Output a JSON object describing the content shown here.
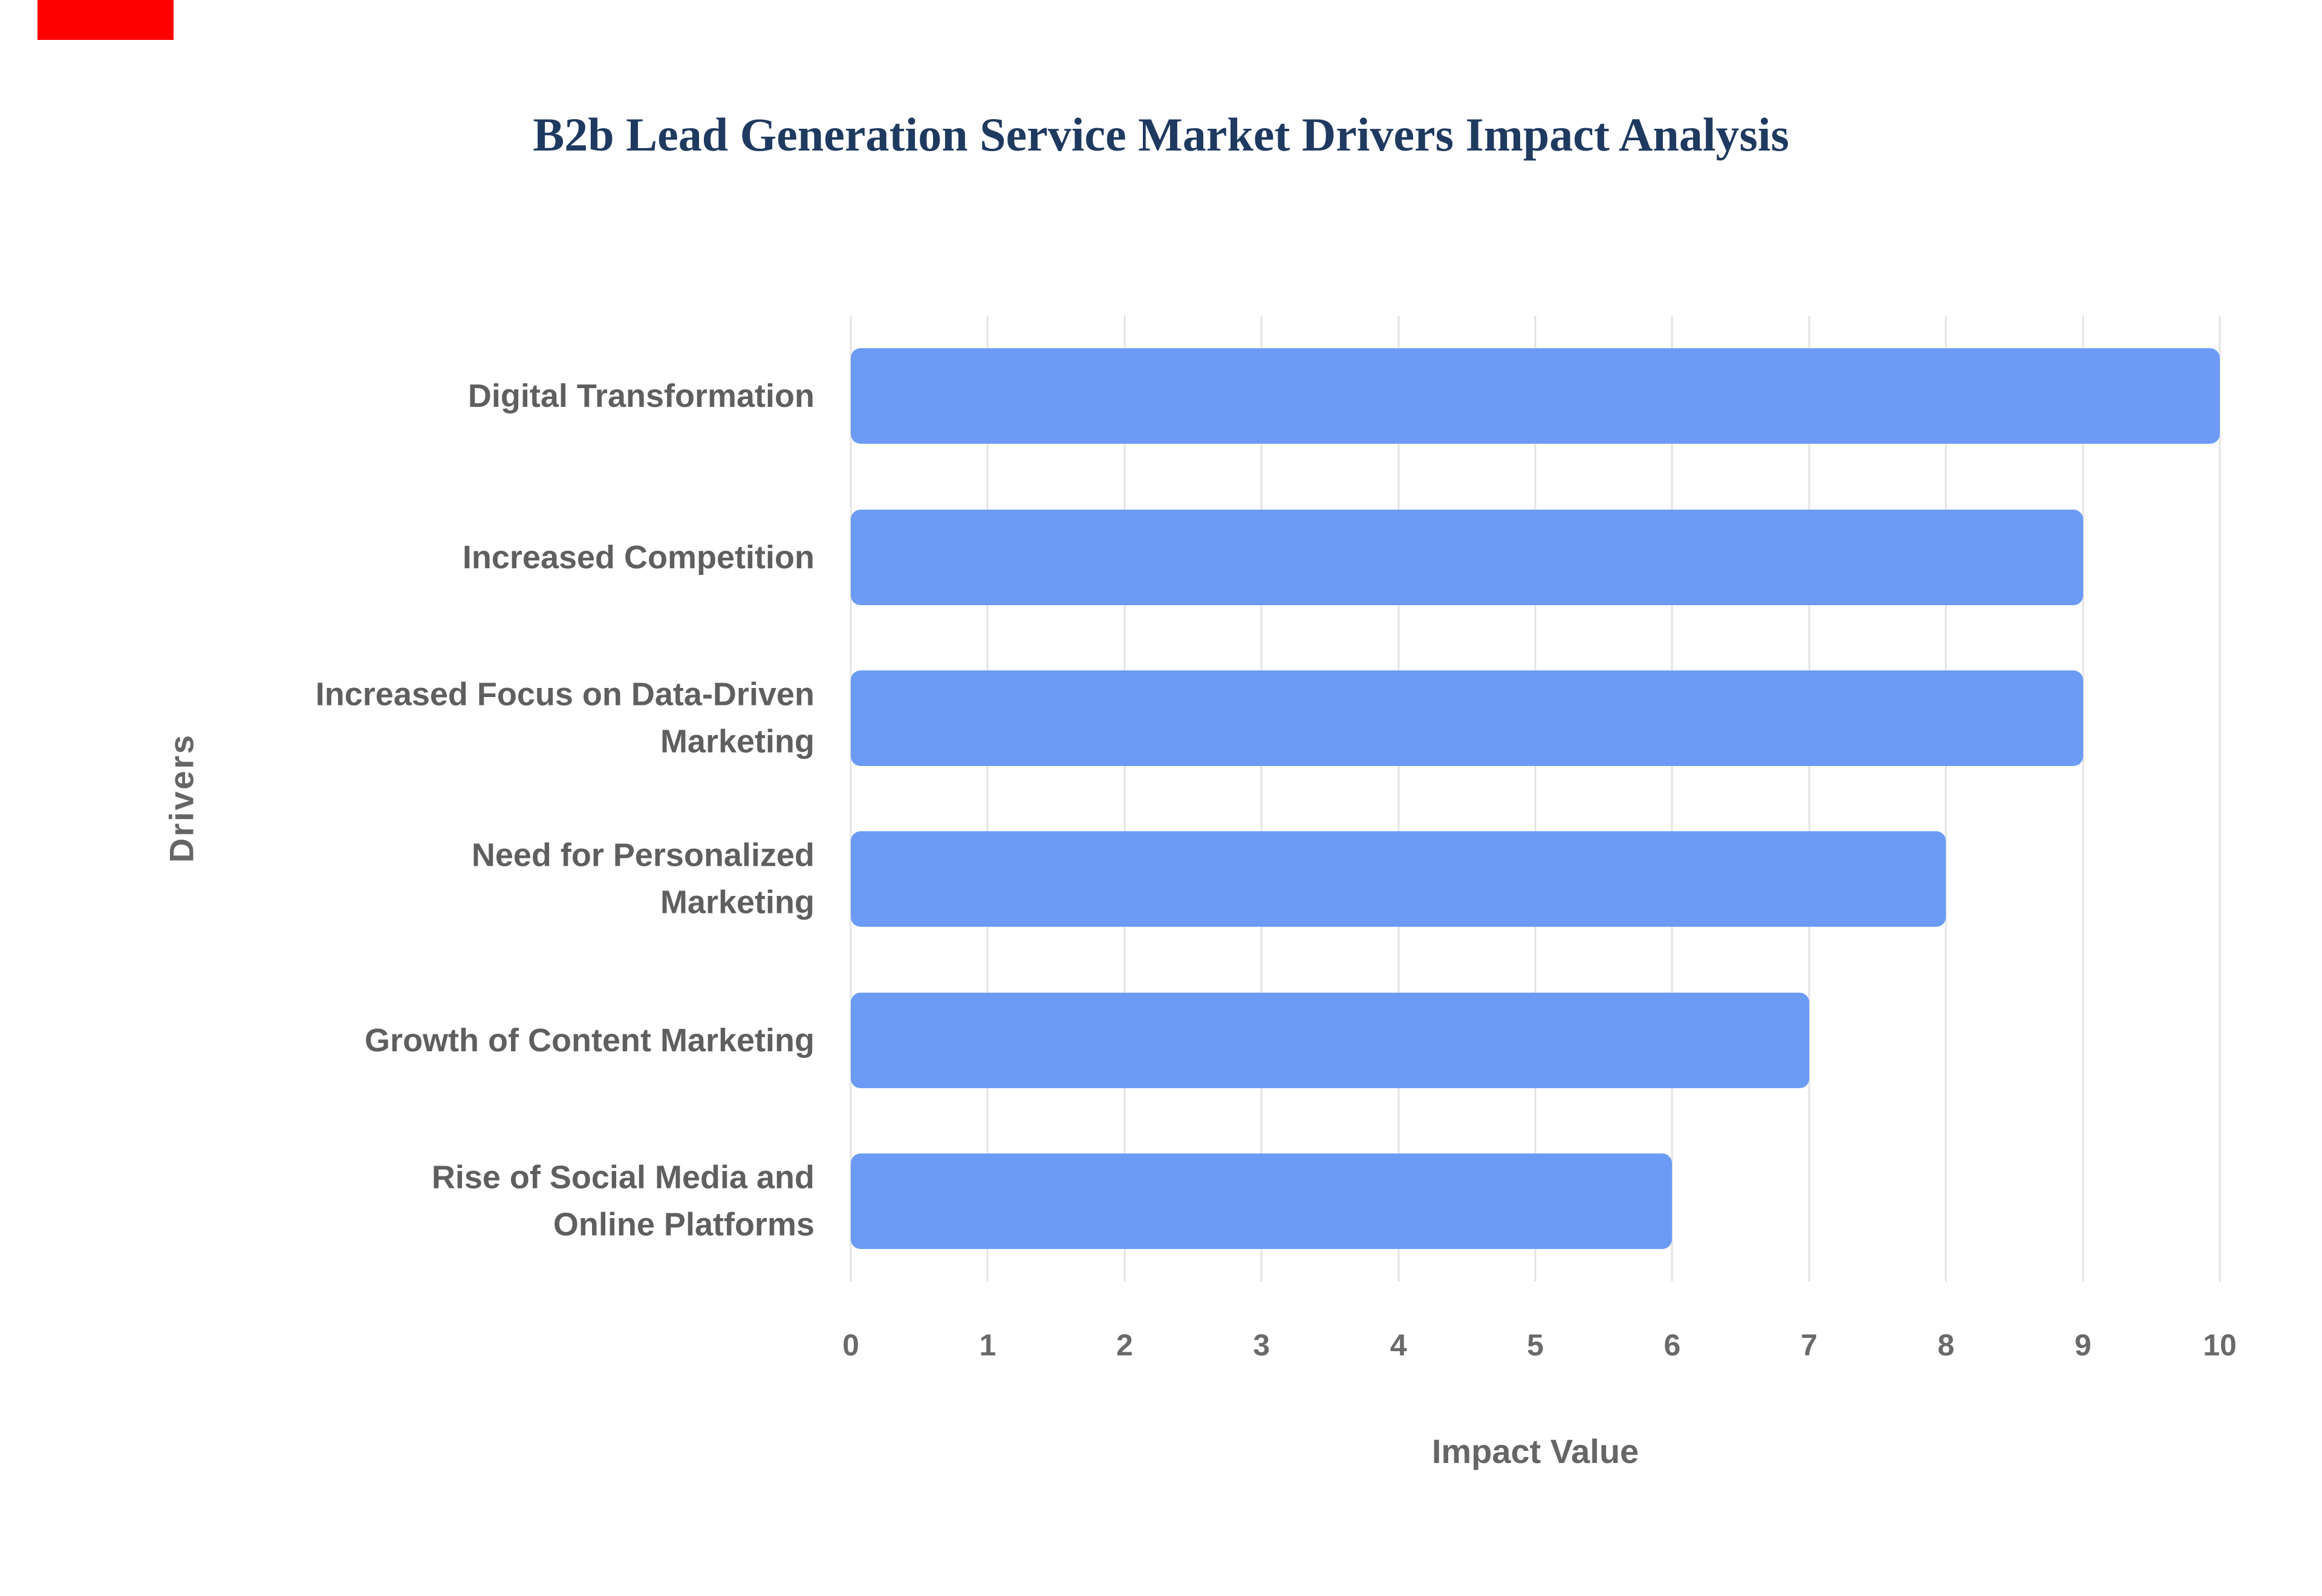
{
  "decorations": {
    "red_block_color": "#fe0000"
  },
  "chart_data": {
    "type": "bar",
    "orientation": "horizontal",
    "title": "B2b Lead Generation Service Market Drivers Impact Analysis",
    "categories": [
      "Digital Transformation",
      "Increased Competition",
      "Increased Focus on Data-Driven\nMarketing",
      "Need for Personalized\nMarketing",
      "Growth of Content Marketing",
      "Rise of Social Media and\nOnline Platforms"
    ],
    "values": [
      10,
      9,
      9,
      8,
      7,
      6
    ],
    "xlabel": "Impact Value",
    "ylabel": "Drivers",
    "xlim": [
      0,
      10
    ],
    "xticks": [
      0,
      1,
      2,
      3,
      4,
      5,
      6,
      7,
      8,
      9,
      10
    ],
    "grid": true,
    "legend": "none",
    "bar_color": "#6b9bf4",
    "gridline_color": "#e3e3e3",
    "title_color": "#1f3a5f",
    "label_color": "#5f5f5f",
    "tick_color": "#6a6a6a",
    "axis_title_color": "#666666",
    "background_color": "#ffffff"
  }
}
